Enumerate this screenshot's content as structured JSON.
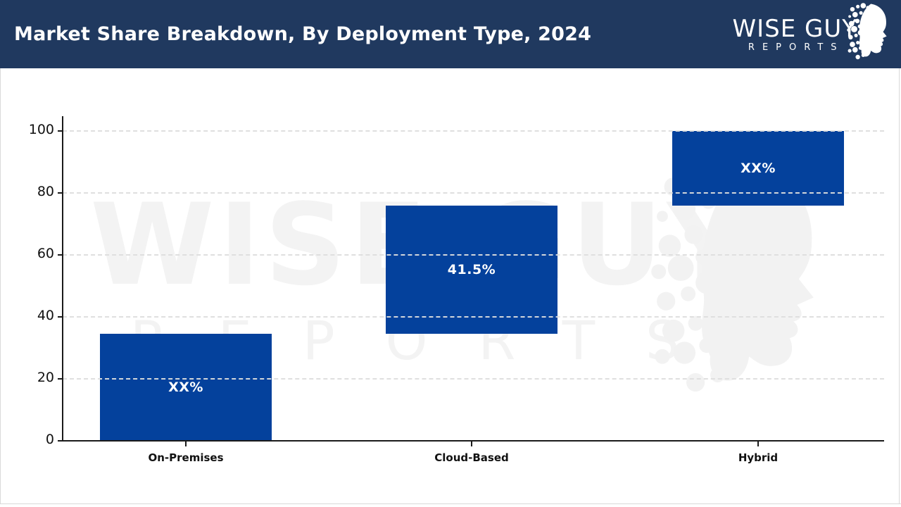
{
  "header": {
    "title": "Market Share Breakdown, By Deployment Type, 2024",
    "logo": {
      "name": "WISE GUY",
      "subtitle": "REPORTS"
    }
  },
  "watermark": {
    "name": "WISE GUY",
    "subtitle": "REPORTS"
  },
  "chart_data": {
    "type": "bar",
    "subtype": "floating-waterfall",
    "title": "Market Share Breakdown, By Deployment Type, 2024",
    "categories": [
      "On-Premises",
      "Cloud-Based",
      "Hybrid"
    ],
    "bars": [
      {
        "category": "On-Premises",
        "start": 0,
        "end": 34.5,
        "value_label": "XX%"
      },
      {
        "category": "Cloud-Based",
        "start": 34.5,
        "end": 76,
        "value_label": "41.5%"
      },
      {
        "category": "Hybrid",
        "start": 76,
        "end": 100,
        "value_label": "XX%"
      }
    ],
    "xlabel": "",
    "ylabel": "",
    "yticks": [
      0,
      20,
      40,
      60,
      80,
      100
    ],
    "ylim": [
      0,
      104.8
    ],
    "grid": "horizontal-dashed",
    "legend": "none"
  },
  "colors": {
    "header_bg": "#20395f",
    "bar": "#04419c",
    "grid": "#dedede",
    "axis": "#1a1a1a",
    "watermark": "#f2f2f2"
  }
}
